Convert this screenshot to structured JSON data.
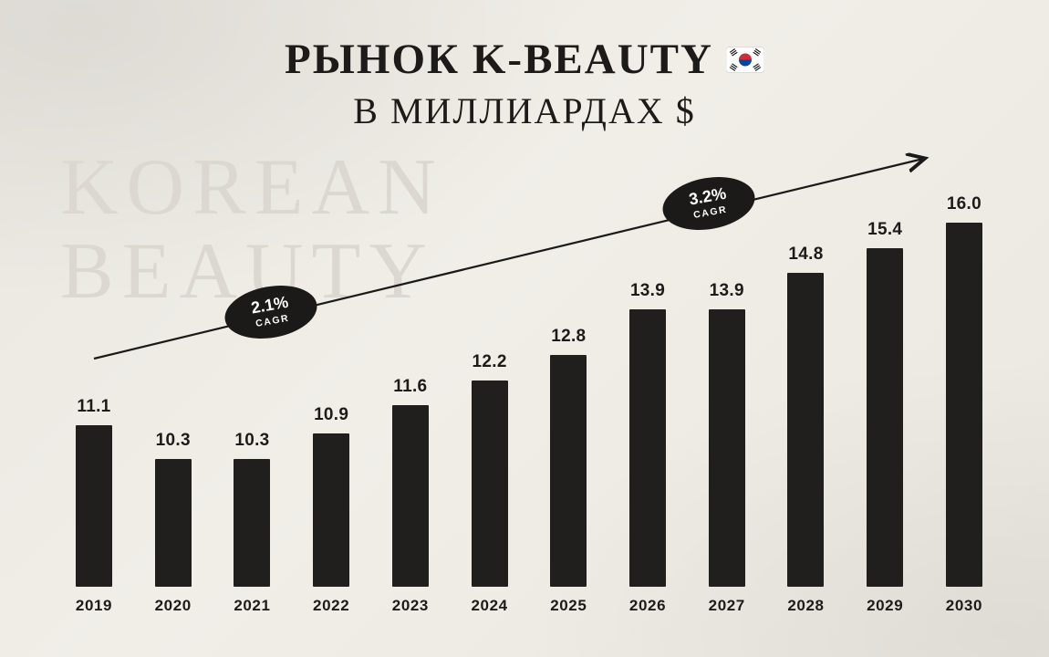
{
  "header": {
    "title_line1": "РЫНОК K-BEAUTY",
    "title_line2": "В МИЛЛИАРДАХ $",
    "flag_icon": "south-korea-flag"
  },
  "watermark": {
    "line1": "KOREAN",
    "line2": "BEAUTY"
  },
  "badges": [
    {
      "value": "2.1%",
      "label": "CAGR"
    },
    {
      "value": "3.2%",
      "label": "CAGR"
    }
  ],
  "chart_data": {
    "type": "bar",
    "title": "РЫНОК K-BEAUTY В МИЛЛИАРДАХ $",
    "unit": "billions USD",
    "categories": [
      "2019",
      "2020",
      "2021",
      "2022",
      "2023",
      "2024",
      "2025",
      "2026",
      "2027",
      "2028",
      "2029",
      "2030"
    ],
    "values": [
      11.1,
      10.3,
      10.3,
      10.9,
      11.6,
      12.2,
      12.8,
      13.9,
      13.9,
      14.8,
      15.4,
      16.0
    ],
    "bar_color": "#211f1d",
    "background_color": "#eceae4",
    "value_labels_shown": true,
    "trend_arrow": true,
    "annotations": [
      {
        "text": "2.1% CAGR",
        "position": "on trend arrow, left segment"
      },
      {
        "text": "3.2% CAGR",
        "position": "on trend arrow, right segment"
      }
    ],
    "legend": "none",
    "grid": false
  }
}
